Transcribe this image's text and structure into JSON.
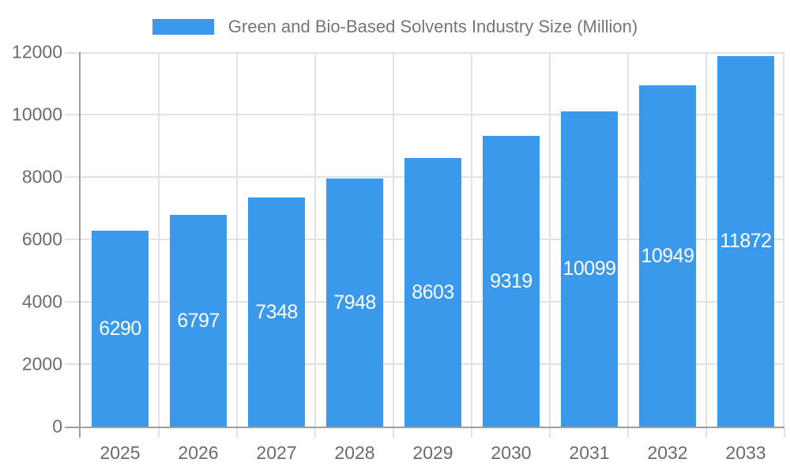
{
  "chart_data": {
    "type": "bar",
    "title": "Green and Bio-Based Solvents Industry Size (Million)",
    "categories": [
      "2025",
      "2026",
      "2027",
      "2028",
      "2029",
      "2030",
      "2031",
      "2032",
      "2033"
    ],
    "values": [
      6290,
      6797,
      7348,
      7948,
      8603,
      9319,
      10099,
      10949,
      11872
    ],
    "value_labels": "inside-center",
    "xlabel": "",
    "ylabel": "",
    "ylim": [
      0,
      12000
    ],
    "yticks": [
      0,
      2000,
      4000,
      6000,
      8000,
      10000,
      12000
    ],
    "legend_position": "top",
    "grid": true,
    "colors": {
      "bar": "#3B99EB",
      "bar_label": "#FFFFFF",
      "grid": "#E2E2E2",
      "axis": "#9E9E9E",
      "tick_label": "#6B6B6B",
      "legend_text": "#757575"
    }
  }
}
